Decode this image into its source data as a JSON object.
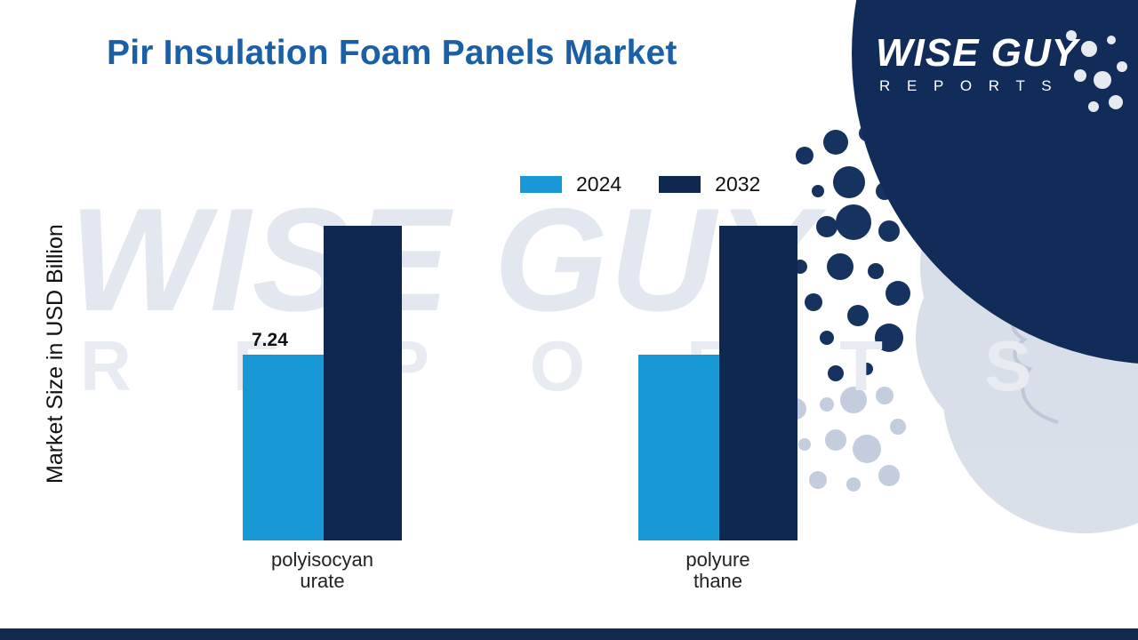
{
  "header": {
    "title": "Pir Insulation Foam Panels Market"
  },
  "logo": {
    "name": "WISE GUY",
    "sub": "R E P O R T S"
  },
  "watermark": {
    "line1": "WISE GUY",
    "line2": "R E P O R T S"
  },
  "chart_data": {
    "type": "bar",
    "title": "Pir Insulation Foam Panels Market",
    "xlabel": "",
    "ylabel": "Market Size in USD Billion",
    "categories": [
      "polyisocyanurate",
      "polyurethane"
    ],
    "category_display": [
      [
        "polyisocyan",
        "urate"
      ],
      [
        "polyure",
        "thane"
      ]
    ],
    "series": [
      {
        "name": "2024",
        "color": "#1899d6",
        "values": [
          7.24,
          7.24
        ]
      },
      {
        "name": "2032",
        "color": "#0e2852",
        "values": [
          12.26,
          12.26
        ]
      }
    ],
    "value_labels": [
      {
        "category_index": 0,
        "series_index": 0,
        "text": "7.24"
      }
    ],
    "ylim": [
      0,
      12.26
    ],
    "grid": false,
    "legend_position": "top-right"
  },
  "colors": {
    "title": "#1b5fa6",
    "bar_2024": "#1899d6",
    "bar_2032": "#0e2852",
    "footer_bar": "#14294e",
    "logo_background": "#122c59",
    "watermark": "#e3e7ef"
  }
}
